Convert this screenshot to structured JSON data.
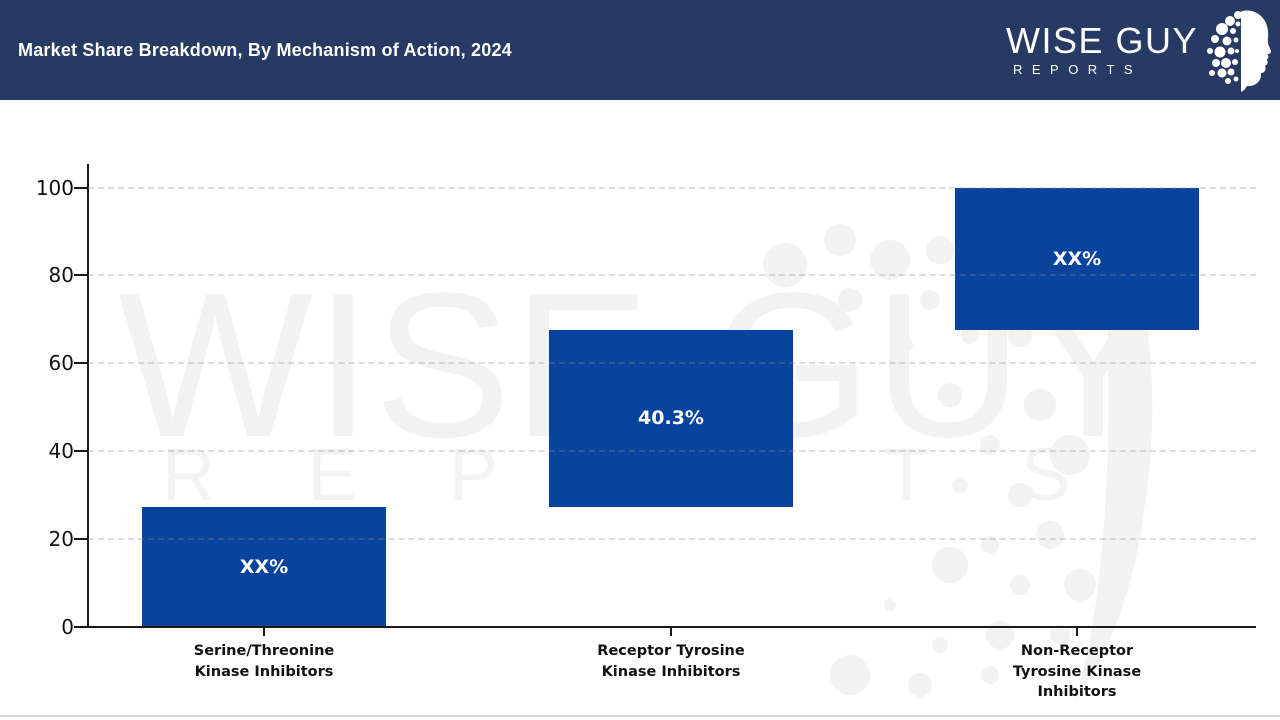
{
  "header": {
    "title": "Market Share Breakdown, By Mechanism of Action, 2024",
    "bg_color": "#273A63",
    "logo": {
      "line1": "WISE GUY",
      "line2": "REPORTS"
    }
  },
  "watermark": {
    "line1": "WISE GUY",
    "line2": "REPORTS"
  },
  "chart_data": {
    "type": "bar",
    "subtype": "stacked-waterfall",
    "title": "Market Share Breakdown, By Mechanism of Action, 2024",
    "categories": [
      "Serine/Threonine Kinase Inhibitors",
      "Receptor Tyrosine Kinase Inhibitors",
      "Non-Receptor Tyrosine Kinase Inhibitors"
    ],
    "category_lines": [
      [
        "Serine/Threonine",
        "Kinase Inhibitors"
      ],
      [
        "Receptor Tyrosine",
        "Kinase Inhibitors"
      ],
      [
        "Non-Receptor",
        "Tyrosine Kinase",
        "Inhibitors"
      ]
    ],
    "segments": [
      {
        "category": "Serine/Threonine Kinase Inhibitors",
        "start": 0,
        "end": 27.3,
        "label": "XX%"
      },
      {
        "category": "Receptor Tyrosine Kinase Inhibitors",
        "start": 27.3,
        "end": 67.6,
        "label": "40.3%",
        "value": 40.3
      },
      {
        "category": "Non-Receptor Tyrosine Kinase Inhibitors",
        "start": 67.6,
        "end": 100,
        "label": "XX%"
      }
    ],
    "yticks": [
      0,
      20,
      40,
      60,
      80,
      100
    ],
    "ylim": [
      0,
      105
    ],
    "xlabel": "",
    "ylabel": "",
    "grid": "horizontal-dashed",
    "grid_above_bars": true,
    "bar_color": "#08449E",
    "bar_label_color": "#ffffff",
    "axis_color": "#1a1a1a"
  }
}
